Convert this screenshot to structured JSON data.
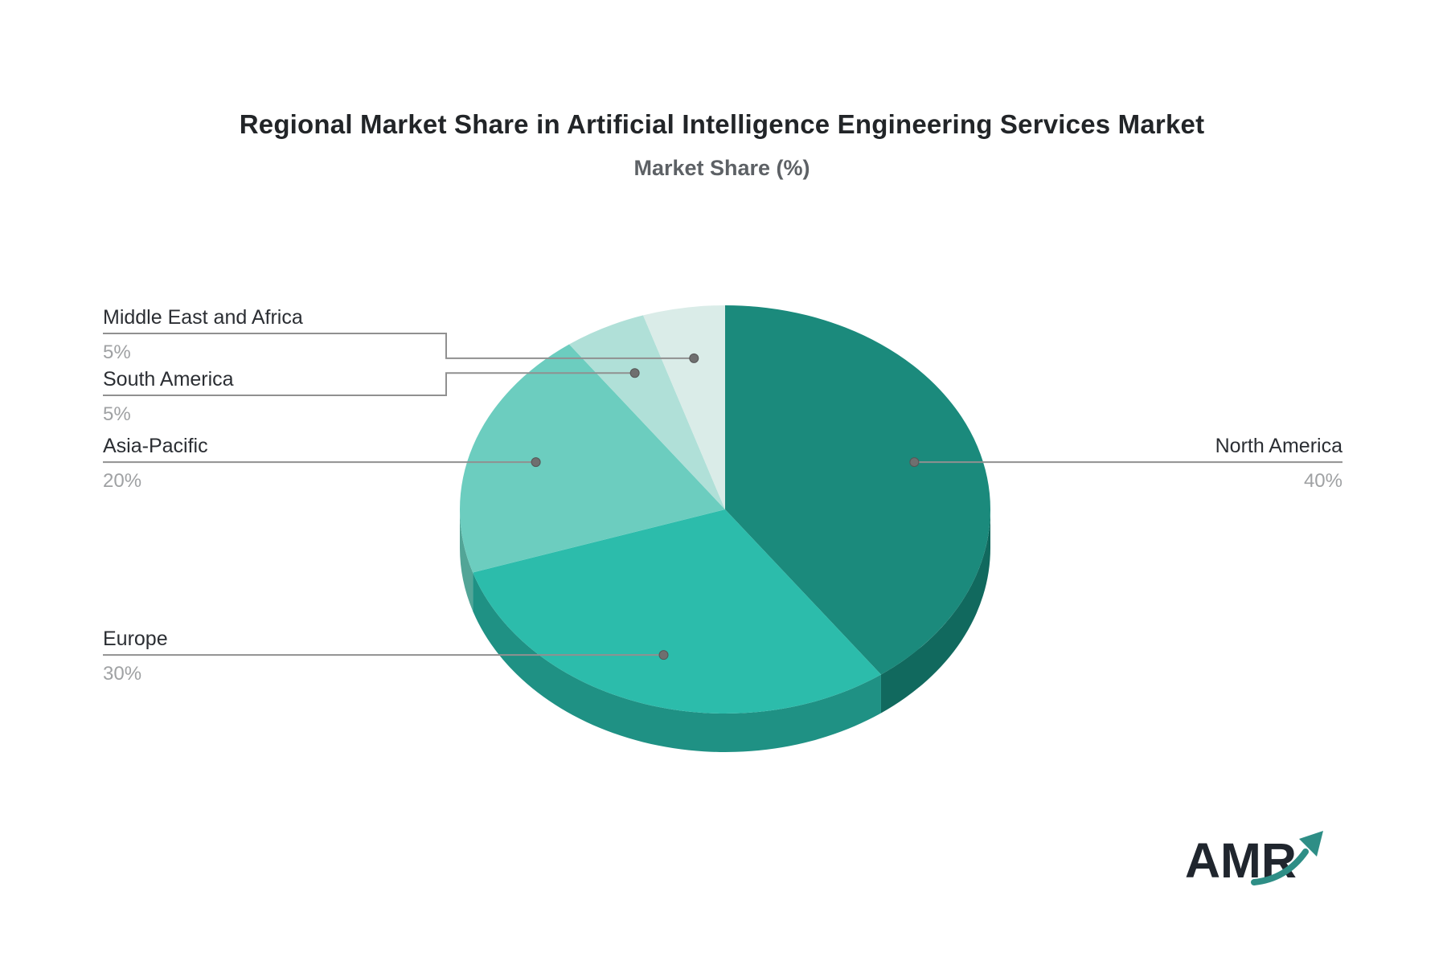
{
  "title": "Regional Market Share in Artificial Intelligence Engineering Services Market",
  "subtitle": "Market Share (%)",
  "watermark": "AMR",
  "chart_data": {
    "type": "pie",
    "style": "3d",
    "title": "Regional Market Share in Artificial Intelligence Engineering Services Market",
    "subtitle": "Market Share (%)",
    "unit": "%",
    "start_angle": "12 o'clock, clockwise",
    "legend_position": "callout labels with leader lines",
    "slices": [
      {
        "label": "North America",
        "value": 40,
        "value_label": "40%",
        "color": "#1b8a7c",
        "side_color": "#11695e",
        "callout_side": "right"
      },
      {
        "label": "Europe",
        "value": 30,
        "value_label": "30%",
        "color": "#2cbcab",
        "side_color": "#1f9184",
        "callout_side": "left"
      },
      {
        "label": "Asia-Pacific",
        "value": 20,
        "value_label": "20%",
        "color": "#6ccdbf",
        "side_color": "#52a597",
        "callout_side": "left"
      },
      {
        "label": "South America",
        "value": 5,
        "value_label": "5%",
        "color": "#b0e0d8",
        "side_color": "#8cbcb2",
        "callout_side": "left"
      },
      {
        "label": "Middle East and Africa",
        "value": 5,
        "value_label": "5%",
        "color": "#daece8",
        "side_color": "#b3c9c4",
        "callout_side": "left"
      }
    ],
    "colors": {
      "leader_line": "#909090",
      "tick_dot": "#6f6f6f",
      "label_text": "#2b2e33",
      "value_text": "#9fa1a3",
      "title_text": "#222528",
      "subtitle_text": "#5d6165",
      "logo_text": "#20262e",
      "logo_arrow": "#2e8e86"
    }
  }
}
